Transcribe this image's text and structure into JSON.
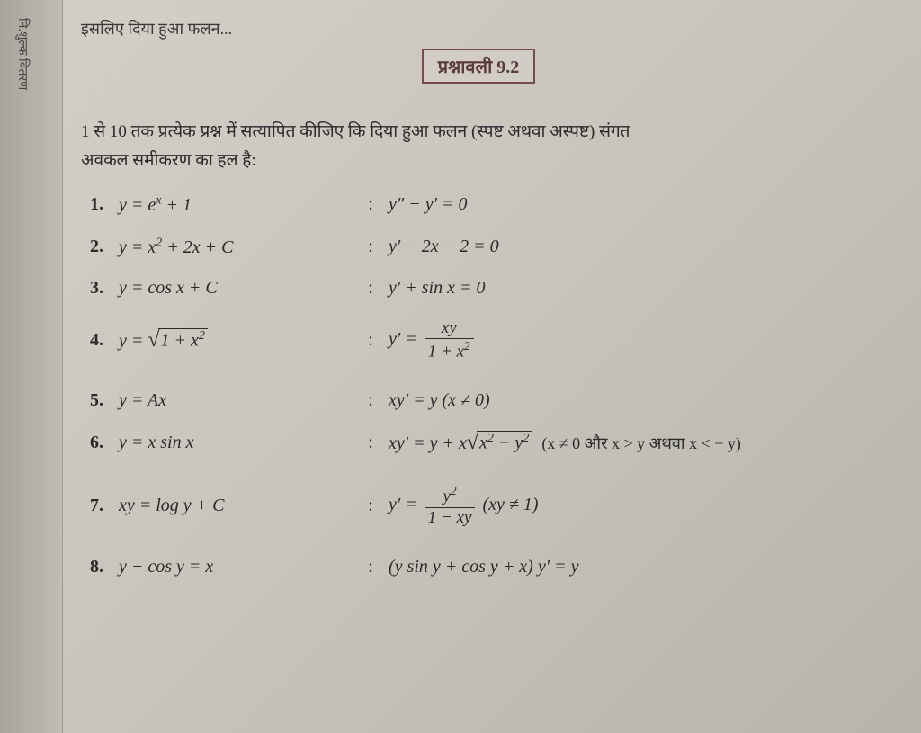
{
  "side_label": "नि.शुल्क वितरण",
  "top_fragment": "इसलिए दिया हुआ फलन...",
  "exercise_title": "प्रश्नावली 9.2",
  "instruction_line1": "1 से 10 तक प्रत्येक प्रश्न में सत्यापित कीजिए कि दिया हुआ फलन (स्पष्ट अथवा अस्पष्ट) संगत",
  "instruction_line2": "अवकल समीकरण का हल है:",
  "problems": [
    {
      "num": "1.",
      "lhs_html": "<span class='math'>y = e<span class='sup'>x</span> + 1</span>",
      "rhs_html": "<span class='math'>y″ − y′ = 0</span>"
    },
    {
      "num": "2.",
      "lhs_html": "<span class='math'>y = x<span class='sup'>2</span> + 2x + C</span>",
      "rhs_html": "<span class='math'>y′ − 2x − 2 = 0</span>"
    },
    {
      "num": "3.",
      "lhs_html": "<span class='math'>y = cos x + C</span>",
      "rhs_html": "<span class='math'>y′ + sin x = 0</span>"
    },
    {
      "num": "4.",
      "lhs_html": "<span class='math'>y = <span class='sqrt'><span class='sqrt-sign'>√</span><span class='sqrt-content'>1 + x<span class='sup'>2</span></span></span></span>",
      "rhs_html": "<span class='math'>y′ = <span class='frac'><span class='frac-num'>xy</span><span class='frac-den'>1 + x<span class='sup'>2</span></span></span></span>",
      "tall": true
    },
    {
      "num": "5.",
      "lhs_html": "<span class='math'>y = Ax</span>",
      "rhs_html": "<span class='math'>xy′ = y (x ≠ 0)</span>"
    },
    {
      "num": "6.",
      "lhs_html": "<span class='math'>y = x sin x</span>",
      "rhs_html": "<span class='math'>xy′ = y + x<span class='sqrt'><span class='sqrt-sign'>√</span><span class='sqrt-content'>x<span class='sup'>2</span> − y<span class='sup'>2</span></span></span></span> <span class='note'>(x ≠ 0 और x > y अथवा x < − y)</span>",
      "tall": true
    },
    {
      "num": "7.",
      "lhs_html": "<span class='math'>xy = log y + C</span>",
      "rhs_html": "<span class='math'>y′ = <span class='frac'><span class='frac-num'>y<span class='sup'>2</span></span><span class='frac-den'>1 − xy</span></span> (xy ≠ 1)</span>",
      "tall": true
    },
    {
      "num": "8.",
      "lhs_html": "<span class='math'>y − cos y = x</span>",
      "rhs_html": "<span class='math'>(y sin y + cos y + x) y′ = y</span>"
    }
  ],
  "colors": {
    "text": "#2a2a2a",
    "box_border": "#7a4a4a",
    "box_text": "#5a3a3a",
    "background_start": "#d4d0c8",
    "background_end": "#b8b4ac"
  },
  "fontsize": {
    "body": 20,
    "instruction": 19,
    "title": 20
  }
}
